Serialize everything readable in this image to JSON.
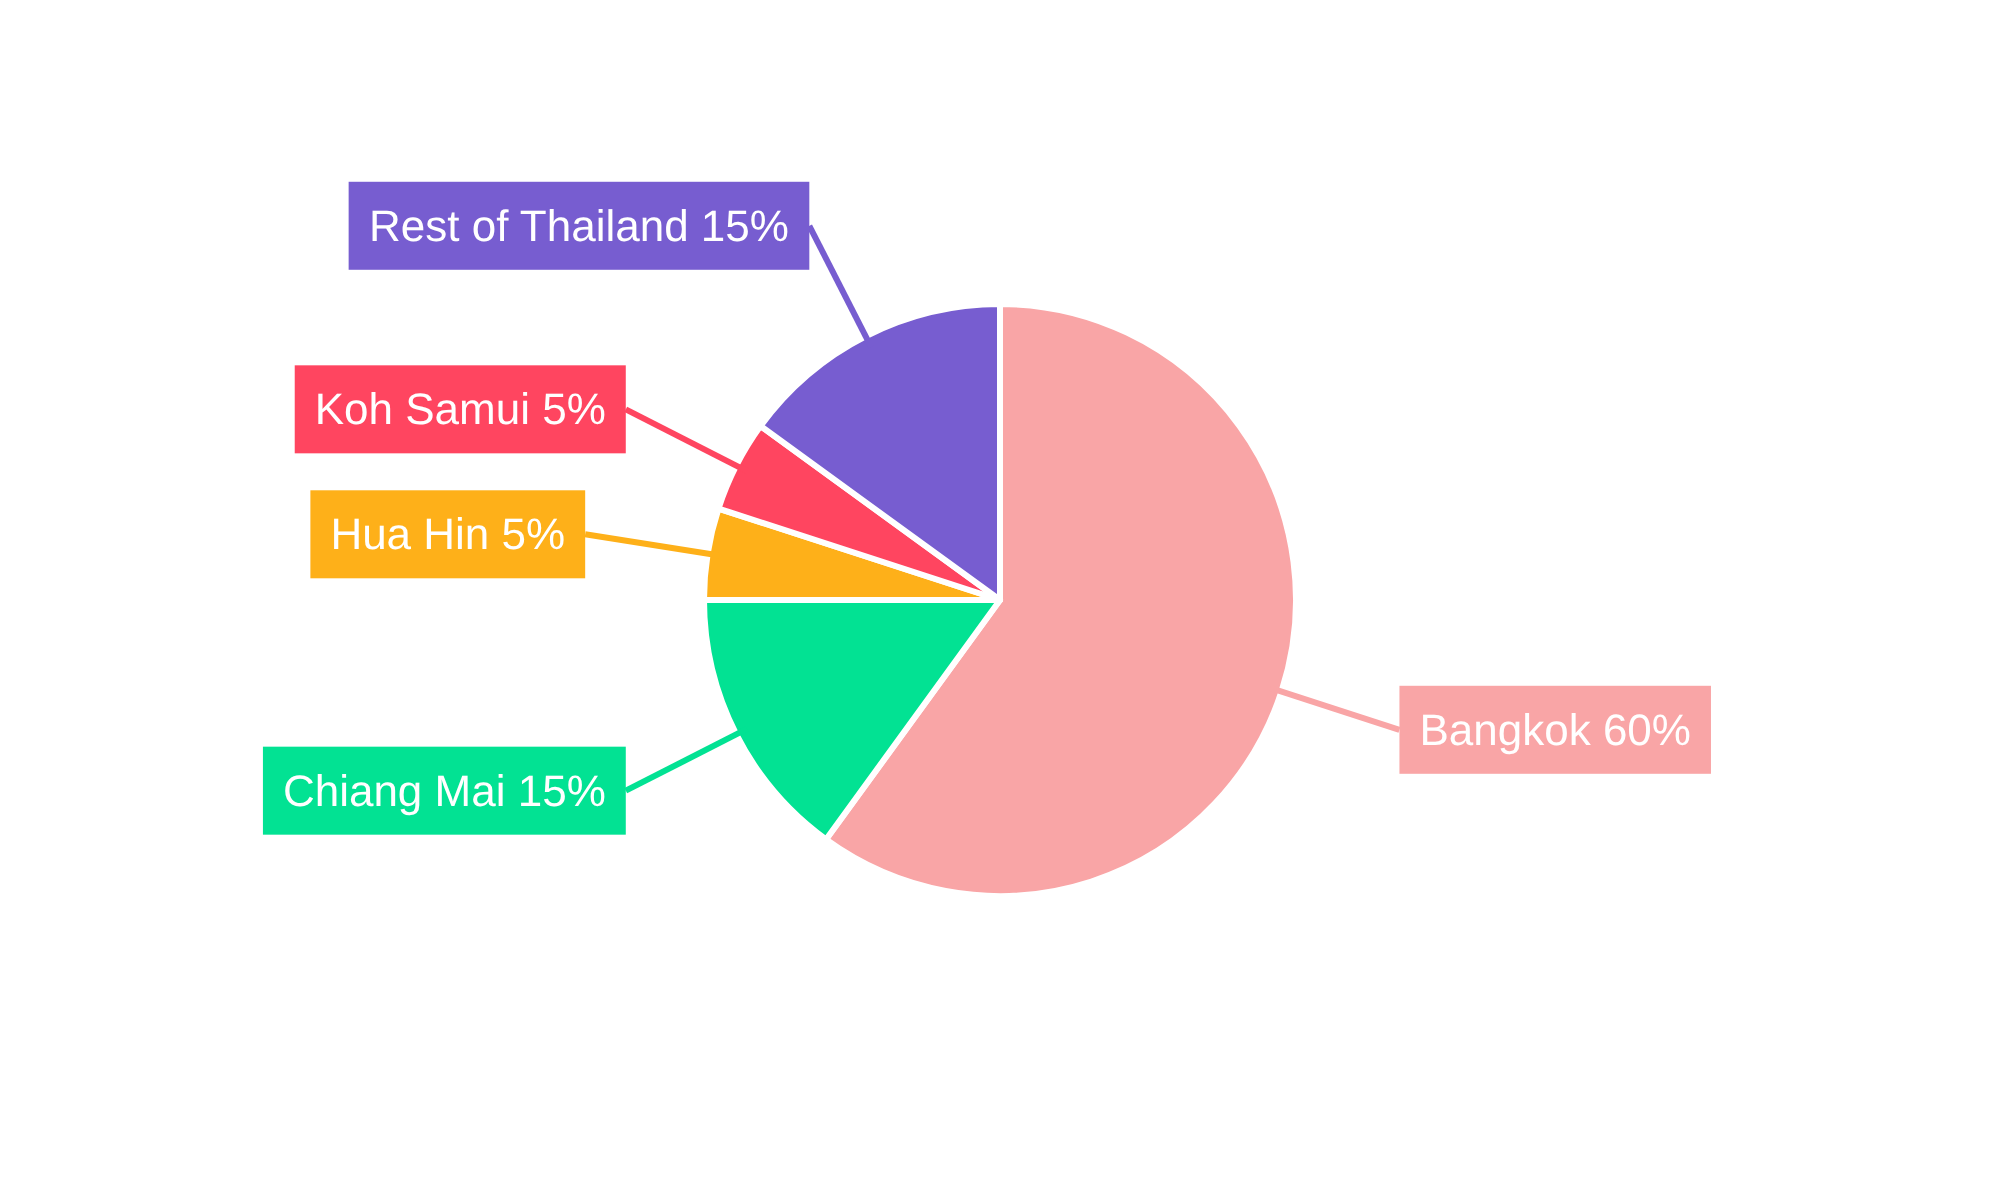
{
  "chart_data": {
    "type": "pie",
    "categories": [
      "Bangkok",
      "Chiang Mai",
      "Hua Hin",
      "Koh Samui",
      "Rest of Thailand"
    ],
    "values": [
      60,
      15,
      5,
      5,
      15
    ],
    "value_labels": [
      "60%",
      "15%",
      "5%",
      "5%",
      "15%"
    ],
    "colors": [
      "#f9a5a6",
      "#02e293",
      "#feb019",
      "#ff4560",
      "#775dd0"
    ]
  }
}
